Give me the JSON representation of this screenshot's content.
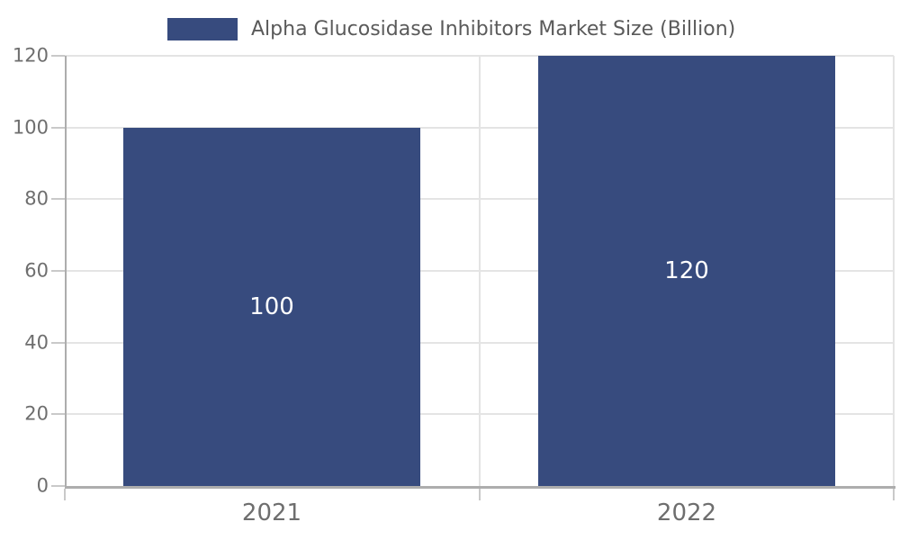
{
  "legend": {
    "label": "Alpha Glucosidase Inhibitors Market Size (Billion)"
  },
  "chart_data": {
    "type": "bar",
    "title": "Alpha Glucosidase Inhibitors Market Size (Billion)",
    "categories": [
      "2021",
      "2022"
    ],
    "series": [
      {
        "name": "Alpha Glucosidase Inhibitors Market Size (Billion)",
        "values": [
          100,
          120
        ]
      }
    ],
    "value_labels": [
      "100",
      "120"
    ],
    "xlabel": "",
    "ylabel": "",
    "ylim": [
      0,
      120
    ],
    "yticks": [
      0,
      20,
      40,
      60,
      80,
      100,
      120
    ],
    "grid": true,
    "legend_position": "top-center",
    "colors": {
      "bar": "#374B7E",
      "grid_line": "#E4E4E4",
      "axis_line": "#ADADAD",
      "tick": "#C9C9C9",
      "axis_label": "#6E6E6E",
      "legend_text": "#5A5A5A",
      "value_label": "#FFFFFF",
      "background": "#FFFFFF"
    }
  }
}
